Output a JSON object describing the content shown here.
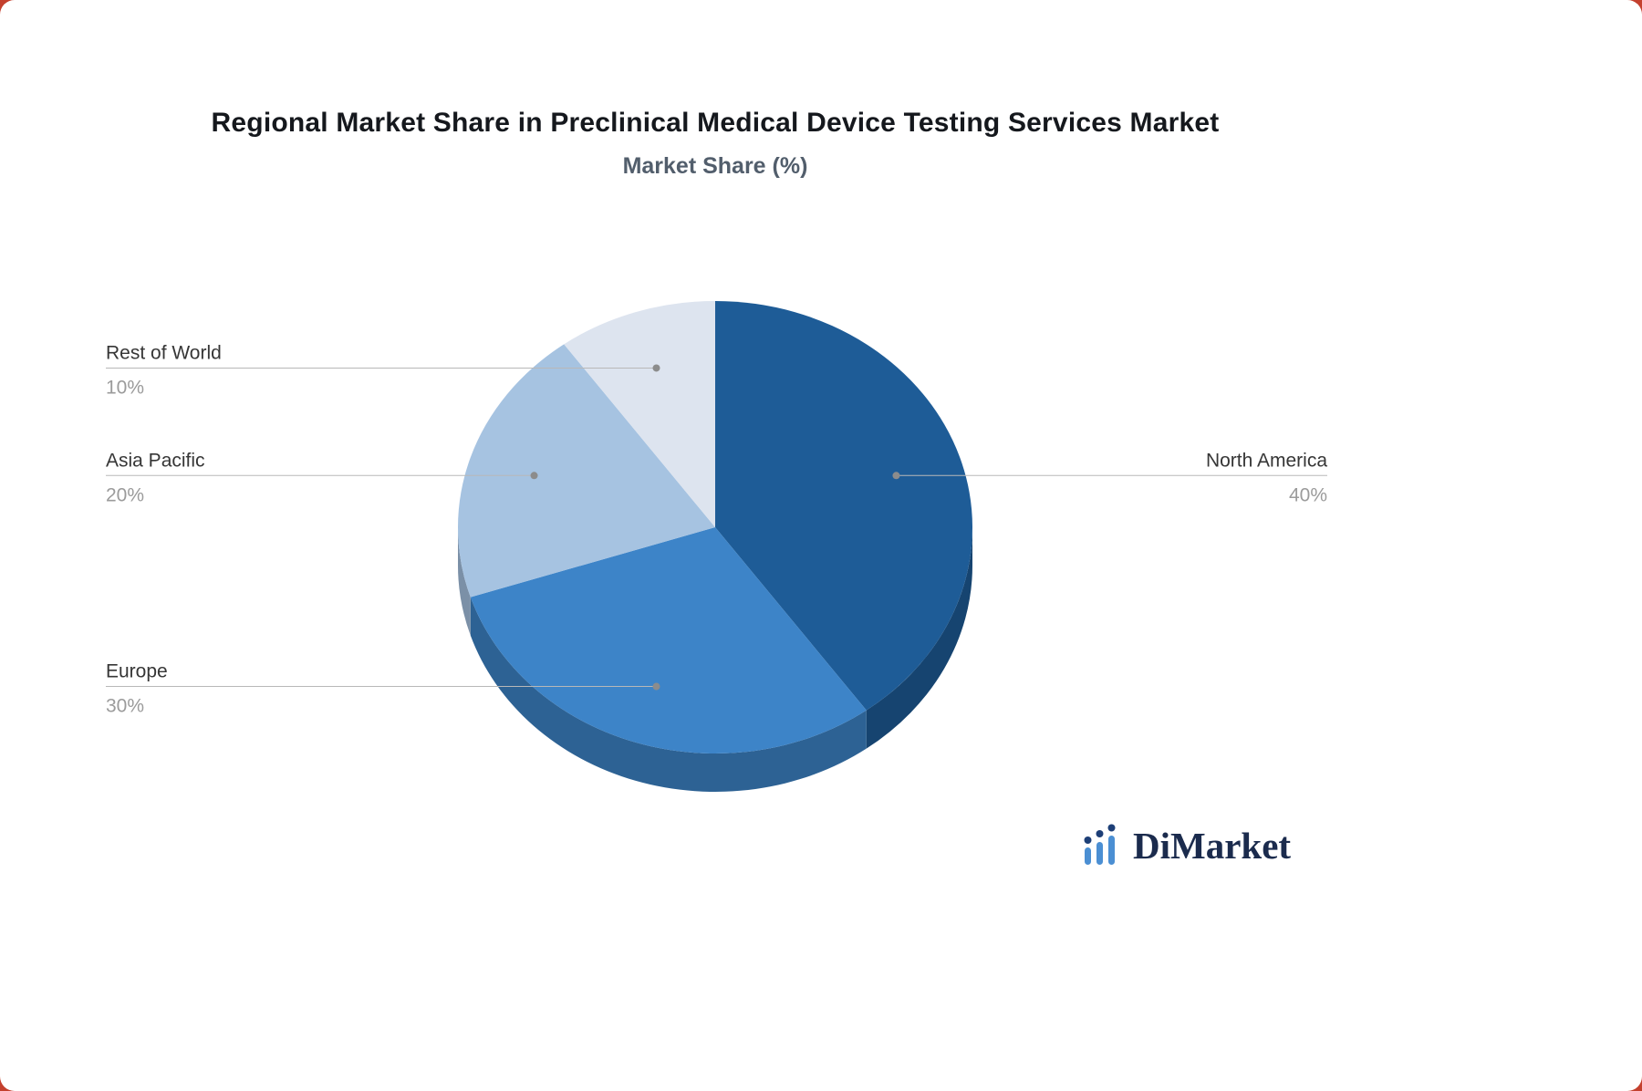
{
  "chart_data": {
    "type": "pie",
    "title": "Regional Market Share in Preclinical Medical Device Testing Services Market",
    "subtitle": "Market Share (%)",
    "unit": "%",
    "direction": "clockwise",
    "start_angle_deg": 0,
    "effect_3d": true,
    "legend": "none",
    "label_style": "leader line with name above and percent below",
    "slices": [
      {
        "label": "North America",
        "value": 40,
        "color": "#1e5c97"
      },
      {
        "label": "Europe",
        "value": 30,
        "color": "#3d84c8"
      },
      {
        "label": "Asia Pacific",
        "value": 20,
        "color": "#a6c3e1"
      },
      {
        "label": "Rest of World",
        "value": 10,
        "color": "#dde4ef"
      }
    ],
    "label_text_color": "#363636",
    "value_text_color": "#9b9b9b",
    "leader_line_color": "#b8b8b8"
  },
  "branding": {
    "logo_text": "DiMarket"
  }
}
